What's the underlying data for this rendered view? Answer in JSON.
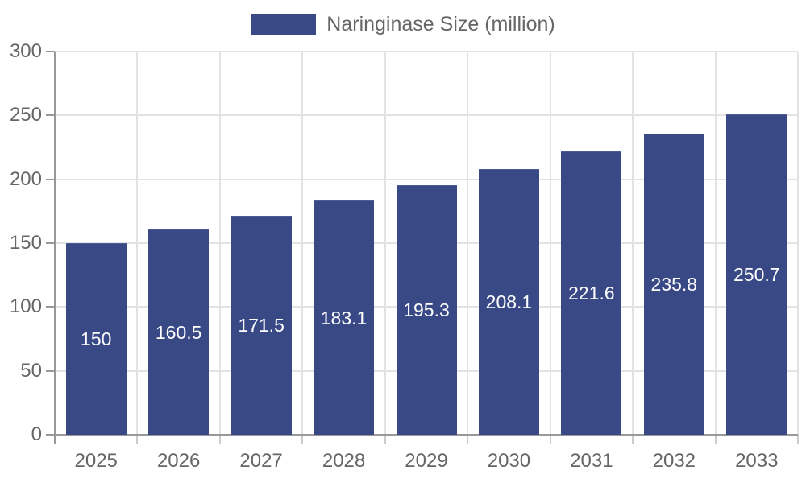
{
  "chart_data": {
    "type": "bar",
    "title": "Naringinase Size (million)",
    "categories": [
      "2025",
      "2026",
      "2027",
      "2028",
      "2029",
      "2030",
      "2031",
      "2032",
      "2033"
    ],
    "values": [
      150,
      160.5,
      171.5,
      183.1,
      195.3,
      208.1,
      221.6,
      235.8,
      250.7
    ],
    "value_labels": [
      "150",
      "160.5",
      "171.5",
      "183.1",
      "195.3",
      "208.1",
      "221.6",
      "235.8",
      "250.7"
    ],
    "xlabel": "",
    "ylabel": "",
    "ylim": [
      0,
      300
    ],
    "yticks": [
      0,
      50,
      100,
      150,
      200,
      250,
      300
    ],
    "grid": true,
    "legend": {
      "position": "top",
      "label": "Naringinase Size (million)"
    },
    "colors": {
      "bar": "#394986",
      "bar_border": "#4d5c96",
      "grid": "#e3e3e3",
      "axis": "#999999",
      "tick_label": "#666666",
      "legend_text": "#666666",
      "value_label": "#ffffff",
      "background": "#ffffff"
    }
  }
}
